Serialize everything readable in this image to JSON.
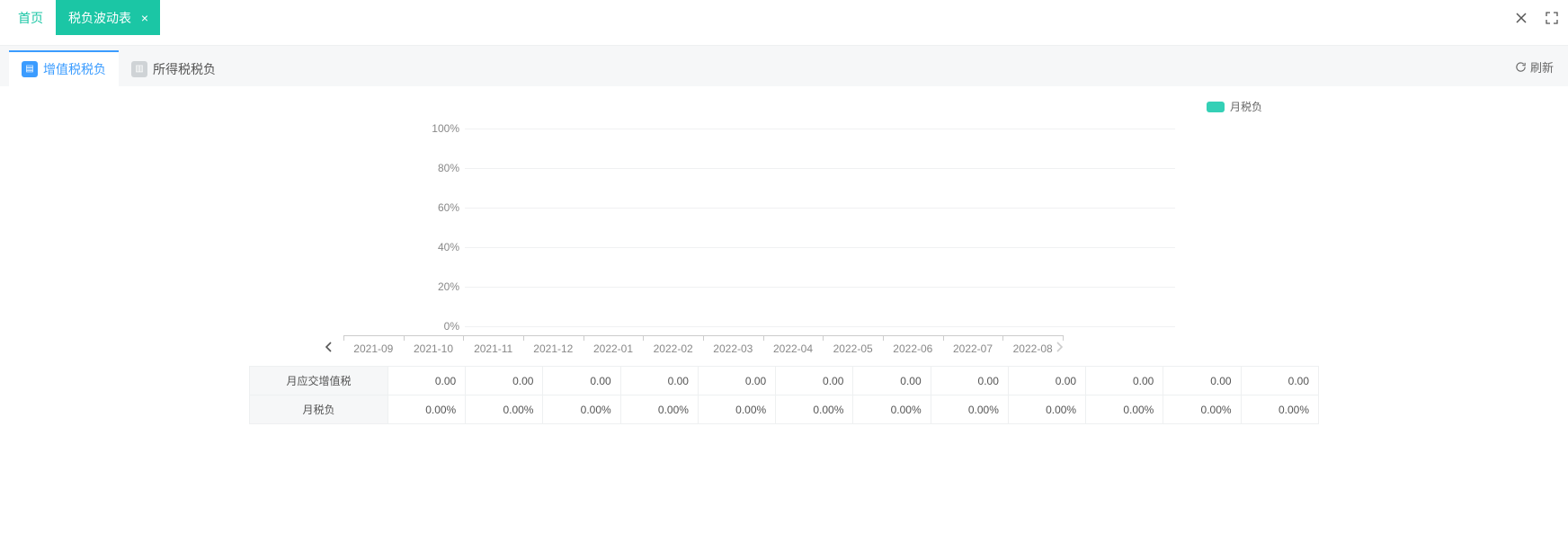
{
  "topTabs": {
    "home": "首页",
    "active": "税负波动表"
  },
  "secTabs": {
    "items": [
      {
        "label": "增值税税负",
        "active": true
      },
      {
        "label": "所得税税负",
        "active": false
      }
    ]
  },
  "refresh": "刷新",
  "legend": {
    "label": "月税负",
    "color": "#34d0b6"
  },
  "chart": {
    "type": "line",
    "series_name": "月税负",
    "series_color": "#34d0b6",
    "yticks": [
      "0%",
      "20%",
      "40%",
      "60%",
      "80%",
      "100%"
    ],
    "ylim": [
      0,
      100
    ],
    "grid_color": "#f0f1f2",
    "axis_color": "#cccccc",
    "label_color": "#888888",
    "background": "#ffffff",
    "categories": [
      "2021-09",
      "2021-10",
      "2021-11",
      "2021-12",
      "2022-01",
      "2022-02",
      "2022-03",
      "2022-04",
      "2022-05",
      "2022-06",
      "2022-07",
      "2022-08"
    ],
    "values": [
      0,
      0,
      0,
      0,
      0,
      0,
      0,
      0,
      0,
      0,
      0,
      0
    ]
  },
  "table": {
    "rows": [
      {
        "header": "月应交增值税",
        "cells": [
          "0.00",
          "0.00",
          "0.00",
          "0.00",
          "0.00",
          "0.00",
          "0.00",
          "0.00",
          "0.00",
          "0.00",
          "0.00",
          "0.00"
        ]
      },
      {
        "header": "月税负",
        "cells": [
          "0.00%",
          "0.00%",
          "0.00%",
          "0.00%",
          "0.00%",
          "0.00%",
          "0.00%",
          "0.00%",
          "0.00%",
          "0.00%",
          "0.00%",
          "0.00%"
        ]
      }
    ]
  }
}
